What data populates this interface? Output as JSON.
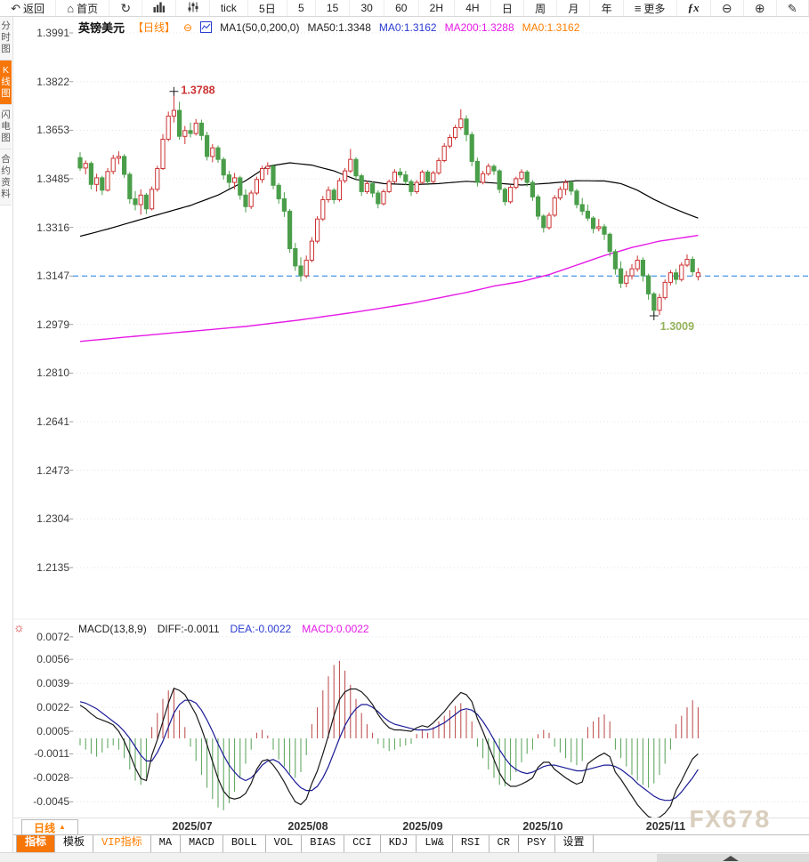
{
  "toolbar": {
    "items": [
      {
        "id": "back",
        "glyph": "↶",
        "label": "返回"
      },
      {
        "id": "home",
        "glyph": "⌂",
        "label": "首页"
      },
      {
        "id": "refresh",
        "glyph": "↻",
        "label": ""
      },
      {
        "id": "kline-chart",
        "glyph": "svg:candles",
        "label": ""
      },
      {
        "id": "indicator-settings",
        "glyph": "svg:sliders",
        "label": ""
      },
      {
        "id": "tick",
        "glyph": "",
        "label": "tick"
      },
      {
        "id": "5d",
        "glyph": "",
        "label": "5日"
      },
      {
        "id": "m5",
        "glyph": "",
        "label": "5"
      },
      {
        "id": "m15",
        "glyph": "",
        "label": "15"
      },
      {
        "id": "m30",
        "glyph": "",
        "label": "30"
      },
      {
        "id": "m60",
        "glyph": "",
        "label": "60"
      },
      {
        "id": "h2",
        "glyph": "",
        "label": "2H"
      },
      {
        "id": "h4",
        "glyph": "",
        "label": "4H"
      },
      {
        "id": "day",
        "glyph": "",
        "label": "日"
      },
      {
        "id": "week",
        "glyph": "",
        "label": "周"
      },
      {
        "id": "month",
        "glyph": "",
        "label": "月"
      },
      {
        "id": "year",
        "glyph": "",
        "label": "年"
      },
      {
        "id": "more",
        "glyph": "≡",
        "label": "更多"
      },
      {
        "id": "fx",
        "glyph": "fx",
        "label": ""
      },
      {
        "id": "zoom-out",
        "glyph": "⊖",
        "label": ""
      },
      {
        "id": "zoom-in",
        "glyph": "⊕",
        "label": ""
      },
      {
        "id": "draw",
        "glyph": "✎",
        "label": ""
      }
    ]
  },
  "sidebar": {
    "tabs": [
      {
        "id": "time-share",
        "label": "分时图",
        "active": false
      },
      {
        "id": "kline",
        "label": "K线图",
        "active": true
      },
      {
        "id": "flash",
        "label": "闪电图",
        "active": false
      },
      {
        "id": "contract-info",
        "label": "合约资料",
        "active": false
      }
    ]
  },
  "legend": {
    "symbol": "英镑美元",
    "period": "【日线】",
    "collapse_icon": "⊖",
    "ma_group": "MA1(50,0,200,0)",
    "ma50": "MA50:1.3348",
    "ma0_blue": "MA0:1.3162",
    "ma200": "MA200:1.3288",
    "ma0_orange": "MA0:1.3162"
  },
  "macd_legend": {
    "title": "MACD(13,8,9)",
    "diff": "DIFF:-0.0011",
    "dea": "DEA:-0.0022",
    "macd": "MACD:0.0022",
    "settings_icon": "☼"
  },
  "bottom": {
    "period_label": "日线",
    "caret": "▲",
    "tabs": [
      {
        "id": "indicators",
        "label": "指标",
        "active": true,
        "vip": false
      },
      {
        "id": "templates",
        "label": "模板",
        "active": false,
        "vip": false
      },
      {
        "id": "vip-indicators",
        "label": "VIP指标",
        "active": false,
        "vip": true
      },
      {
        "id": "ma",
        "label": "MA",
        "active": false,
        "vip": false
      },
      {
        "id": "macd",
        "label": "MACD",
        "active": false,
        "vip": false
      },
      {
        "id": "boll",
        "label": "BOLL",
        "active": false,
        "vip": false
      },
      {
        "id": "vol",
        "label": "VOL",
        "active": false,
        "vip": false
      },
      {
        "id": "bias",
        "label": "BIAS",
        "active": false,
        "vip": false
      },
      {
        "id": "cci",
        "label": "CCI",
        "active": false,
        "vip": false
      },
      {
        "id": "kdj",
        "label": "KDJ",
        "active": false,
        "vip": false
      },
      {
        "id": "lwr",
        "label": "LW&",
        "active": false,
        "vip": false
      },
      {
        "id": "rsi",
        "label": "RSI",
        "active": false,
        "vip": false
      },
      {
        "id": "cr",
        "label": "CR",
        "active": false,
        "vip": false
      },
      {
        "id": "psy",
        "label": "PSY",
        "active": false,
        "vip": false
      },
      {
        "id": "settings",
        "label": "设置",
        "active": false,
        "vip": false
      }
    ]
  },
  "watermark": "FX678",
  "colors": {
    "up": "#cc3333",
    "down": "#4a9e4a",
    "ma50": "#000000",
    "ma200": "#e619e6",
    "price_line": "#1b7fe0",
    "dea_line": "#1a1a96",
    "diff_line": "#1a1a1a",
    "hist_up": "#bb4444",
    "hist_down": "#55a055",
    "accent": "#f7760a",
    "annotation_high": "#cc3333",
    "annotation_low": "#94b25a",
    "cross": "#222222"
  },
  "chart_data": {
    "type": "candlestick",
    "title": "英镑美元 日线",
    "x_labels": [
      "2025/07",
      "2025/08",
      "2025/09",
      "2025/10",
      "2025/11"
    ],
    "price_ticks": [
      1.3991,
      1.3822,
      1.3653,
      1.3485,
      1.3316,
      1.3147,
      1.2979,
      1.281,
      1.2641,
      1.2473,
      1.2304,
      1.2135
    ],
    "current_price": 1.3147,
    "high_annotation": {
      "label": "1.3788",
      "index": 17,
      "price": 1.3788
    },
    "low_annotation": {
      "label": "1.3009",
      "index": 104,
      "price": 1.3009
    },
    "candles": [
      [
        1.3558,
        1.3577,
        1.3512,
        1.3522
      ],
      [
        1.3522,
        1.3548,
        1.35,
        1.3538
      ],
      [
        1.3538,
        1.3545,
        1.3448,
        1.3465
      ],
      [
        1.3465,
        1.3502,
        1.344,
        1.3488
      ],
      [
        1.3488,
        1.3495,
        1.3428,
        1.3445
      ],
      [
        1.3445,
        1.3522,
        1.344,
        1.351
      ],
      [
        1.351,
        1.3568,
        1.35,
        1.3556
      ],
      [
        1.3556,
        1.358,
        1.3535,
        1.3562
      ],
      [
        1.3562,
        1.357,
        1.3488,
        1.35
      ],
      [
        1.35,
        1.3508,
        1.3398,
        1.3415
      ],
      [
        1.3415,
        1.3442,
        1.3375,
        1.3395
      ],
      [
        1.3395,
        1.3448,
        1.336,
        1.3428
      ],
      [
        1.3428,
        1.3435,
        1.3362,
        1.338
      ],
      [
        1.338,
        1.3458,
        1.3375,
        1.3448
      ],
      [
        1.3448,
        1.353,
        1.344,
        1.352
      ],
      [
        1.352,
        1.364,
        1.3515,
        1.3622
      ],
      [
        1.3622,
        1.3718,
        1.3615,
        1.3702
      ],
      [
        1.3702,
        1.3788,
        1.368,
        1.3722
      ],
      [
        1.3722,
        1.3752,
        1.362,
        1.3632
      ],
      [
        1.3632,
        1.3668,
        1.3605,
        1.3652
      ],
      [
        1.3652,
        1.368,
        1.3628,
        1.3642
      ],
      [
        1.3642,
        1.3692,
        1.3635,
        1.3678
      ],
      [
        1.3678,
        1.369,
        1.3618,
        1.3635
      ],
      [
        1.3635,
        1.3648,
        1.3548,
        1.3562
      ],
      [
        1.3562,
        1.3605,
        1.3542,
        1.3592
      ],
      [
        1.3592,
        1.36,
        1.354,
        1.3552
      ],
      [
        1.3552,
        1.356,
        1.3482,
        1.3498
      ],
      [
        1.3498,
        1.3512,
        1.3452,
        1.3472
      ],
      [
        1.3472,
        1.3505,
        1.3448,
        1.3488
      ],
      [
        1.3488,
        1.3495,
        1.3412,
        1.3428
      ],
      [
        1.3428,
        1.3448,
        1.3368,
        1.3388
      ],
      [
        1.3388,
        1.3445,
        1.338,
        1.3435
      ],
      [
        1.3435,
        1.3492,
        1.3428,
        1.3482
      ],
      [
        1.3482,
        1.353,
        1.347,
        1.352
      ],
      [
        1.352,
        1.3542,
        1.3498,
        1.3528
      ],
      [
        1.3528,
        1.3535,
        1.3448,
        1.3462
      ],
      [
        1.3462,
        1.347,
        1.3398,
        1.3415
      ],
      [
        1.3415,
        1.3438,
        1.3352,
        1.3372
      ],
      [
        1.3372,
        1.338,
        1.3228,
        1.3242
      ],
      [
        1.3242,
        1.3262,
        1.3165,
        1.3182
      ],
      [
        1.3182,
        1.3212,
        1.3128,
        1.3148
      ],
      [
        1.3148,
        1.3218,
        1.314,
        1.3202
      ],
      [
        1.3202,
        1.3282,
        1.3195,
        1.3268
      ],
      [
        1.3268,
        1.3355,
        1.326,
        1.3345
      ],
      [
        1.3345,
        1.3425,
        1.3338,
        1.3412
      ],
      [
        1.3412,
        1.3458,
        1.3402,
        1.3445
      ],
      [
        1.3445,
        1.3452,
        1.3398,
        1.3412
      ],
      [
        1.3412,
        1.3488,
        1.3405,
        1.3478
      ],
      [
        1.3478,
        1.3522,
        1.347,
        1.3512
      ],
      [
        1.3512,
        1.3588,
        1.3505,
        1.3552
      ],
      [
        1.3552,
        1.356,
        1.3482,
        1.3495
      ],
      [
        1.3495,
        1.3502,
        1.3425,
        1.344
      ],
      [
        1.344,
        1.3478,
        1.3432,
        1.3468
      ],
      [
        1.3468,
        1.3475,
        1.342,
        1.3435
      ],
      [
        1.3435,
        1.3445,
        1.3382,
        1.3398
      ],
      [
        1.3398,
        1.3448,
        1.3392,
        1.344
      ],
      [
        1.344,
        1.3482,
        1.3435,
        1.3475
      ],
      [
        1.3475,
        1.3518,
        1.3468,
        1.3508
      ],
      [
        1.3508,
        1.3522,
        1.3488,
        1.3498
      ],
      [
        1.3498,
        1.3512,
        1.3462,
        1.3475
      ],
      [
        1.3475,
        1.3482,
        1.3425,
        1.344
      ],
      [
        1.344,
        1.348,
        1.3432,
        1.3472
      ],
      [
        1.3472,
        1.3515,
        1.3465,
        1.3508
      ],
      [
        1.3508,
        1.3515,
        1.3462,
        1.3475
      ],
      [
        1.3475,
        1.3512,
        1.3468,
        1.3505
      ],
      [
        1.3505,
        1.3558,
        1.3498,
        1.3548
      ],
      [
        1.3548,
        1.3608,
        1.3542,
        1.3598
      ],
      [
        1.3598,
        1.3638,
        1.359,
        1.3628
      ],
      [
        1.3628,
        1.3672,
        1.362,
        1.3662
      ],
      [
        1.3662,
        1.3726,
        1.3655,
        1.3692
      ],
      [
        1.3692,
        1.3705,
        1.3615,
        1.3638
      ],
      [
        1.3638,
        1.3648,
        1.3528,
        1.3545
      ],
      [
        1.3545,
        1.3558,
        1.3458,
        1.3472
      ],
      [
        1.3472,
        1.3512,
        1.3465,
        1.3502
      ],
      [
        1.3502,
        1.3538,
        1.3495,
        1.3528
      ],
      [
        1.3528,
        1.3535,
        1.3498,
        1.3512
      ],
      [
        1.3512,
        1.3518,
        1.3435,
        1.3448
      ],
      [
        1.3448,
        1.3455,
        1.3392,
        1.3405
      ],
      [
        1.3405,
        1.3462,
        1.3398,
        1.3455
      ],
      [
        1.3455,
        1.3492,
        1.3448,
        1.3485
      ],
      [
        1.3485,
        1.3518,
        1.3478,
        1.3508
      ],
      [
        1.3508,
        1.3515,
        1.3458,
        1.3472
      ],
      [
        1.3472,
        1.348,
        1.3408,
        1.3422
      ],
      [
        1.3422,
        1.343,
        1.3342,
        1.3355
      ],
      [
        1.3355,
        1.3362,
        1.3298,
        1.3315
      ],
      [
        1.3315,
        1.3368,
        1.3308,
        1.3358
      ],
      [
        1.3358,
        1.3428,
        1.3352,
        1.3418
      ],
      [
        1.3418,
        1.3458,
        1.341,
        1.3448
      ],
      [
        1.3448,
        1.3482,
        1.3428,
        1.3472
      ],
      [
        1.3472,
        1.348,
        1.3428,
        1.3442
      ],
      [
        1.3442,
        1.345,
        1.3382,
        1.3395
      ],
      [
        1.3395,
        1.3418,
        1.3358,
        1.3372
      ],
      [
        1.3372,
        1.3395,
        1.3338,
        1.3348
      ],
      [
        1.3348,
        1.3355,
        1.3295,
        1.3312
      ],
      [
        1.3312,
        1.3345,
        1.3302,
        1.3318
      ],
      [
        1.3318,
        1.3328,
        1.3272,
        1.3292
      ],
      [
        1.3292,
        1.3298,
        1.3215,
        1.3232
      ],
      [
        1.3232,
        1.324,
        1.3152,
        1.3172
      ],
      [
        1.3172,
        1.3198,
        1.3105,
        1.3122
      ],
      [
        1.3122,
        1.3165,
        1.3108,
        1.3148
      ],
      [
        1.3148,
        1.3188,
        1.3135,
        1.3172
      ],
      [
        1.3172,
        1.3218,
        1.3162,
        1.3202
      ],
      [
        1.3202,
        1.3212,
        1.3128,
        1.3148
      ],
      [
        1.3148,
        1.3155,
        1.3065,
        1.3085
      ],
      [
        1.3085,
        1.3092,
        1.3009,
        1.3028
      ],
      [
        1.3028,
        1.3085,
        1.3012,
        1.3072
      ],
      [
        1.3072,
        1.3135,
        1.3065,
        1.3125
      ],
      [
        1.3125,
        1.3168,
        1.3115,
        1.3158
      ],
      [
        1.3158,
        1.3172,
        1.3118,
        1.3135
      ],
      [
        1.3135,
        1.3195,
        1.3128,
        1.3185
      ],
      [
        1.3185,
        1.3222,
        1.3178,
        1.3205
      ],
      [
        1.3205,
        1.3215,
        1.3148,
        1.3162
      ],
      [
        1.3145,
        1.3175,
        1.3132,
        1.3158
      ]
    ],
    "ma50_keypoints": [
      [
        0,
        1.3285
      ],
      [
        5,
        1.331
      ],
      [
        10,
        1.3338
      ],
      [
        15,
        1.3365
      ],
      [
        20,
        1.3392
      ],
      [
        25,
        1.3428
      ],
      [
        30,
        1.3478
      ],
      [
        34,
        1.3528
      ],
      [
        38,
        1.354
      ],
      [
        42,
        1.3532
      ],
      [
        46,
        1.3512
      ],
      [
        50,
        1.3482
      ],
      [
        55,
        1.3468
      ],
      [
        60,
        1.3464
      ],
      [
        65,
        1.3468
      ],
      [
        70,
        1.3476
      ],
      [
        75,
        1.347
      ],
      [
        80,
        1.3463
      ],
      [
        85,
        1.3469
      ],
      [
        90,
        1.3478
      ],
      [
        95,
        1.3477
      ],
      [
        98,
        1.3468
      ],
      [
        101,
        1.3445
      ],
      [
        104,
        1.3413
      ],
      [
        107,
        1.3386
      ],
      [
        110,
        1.3363
      ],
      [
        112,
        1.3348
      ]
    ],
    "ma200_keypoints": [
      [
        0,
        1.292
      ],
      [
        10,
        1.2938
      ],
      [
        20,
        1.2955
      ],
      [
        30,
        1.2972
      ],
      [
        40,
        1.2995
      ],
      [
        50,
        1.3022
      ],
      [
        60,
        1.3052
      ],
      [
        70,
        1.309
      ],
      [
        75,
        1.3112
      ],
      [
        80,
        1.3128
      ],
      [
        85,
        1.3152
      ],
      [
        90,
        1.3185
      ],
      [
        95,
        1.3218
      ],
      [
        100,
        1.3246
      ],
      [
        105,
        1.3268
      ],
      [
        112,
        1.3288
      ]
    ],
    "macd": {
      "params": "(13,8,9)",
      "diff_last": -0.0011,
      "dea_last": -0.0022,
      "macd_last": 0.0022,
      "ticks": [
        0.0072,
        0.0056,
        0.0039,
        0.0022,
        0.0005,
        -0.0011,
        -0.0028,
        -0.0045
      ],
      "unit": 0.0001,
      "histogram": [
        -5,
        -8,
        -11,
        -13,
        -10,
        -7,
        -5,
        -8,
        -14,
        -22,
        -30,
        -33,
        -28,
        8,
        18,
        28,
        34,
        35,
        20,
        8,
        -6,
        -16,
        -26,
        -35,
        -43,
        -49,
        -51,
        -46,
        -38,
        -28,
        -18,
        -8,
        4,
        6,
        2,
        -8,
        -15,
        -20,
        -25,
        -28,
        -24,
        -12,
        10,
        22,
        34,
        44,
        52,
        55,
        48,
        38,
        28,
        18,
        10,
        4,
        -4,
        -7,
        -9,
        -8,
        -6,
        -5,
        -4,
        3,
        6,
        4,
        8,
        12,
        16,
        20,
        23,
        25,
        20,
        12,
        -6,
        -14,
        -22,
        -28,
        -33,
        -34,
        -30,
        -24,
        -17,
        -11,
        -8,
        3,
        6,
        4,
        -6,
        -10,
        -14,
        -17,
        -19,
        -16,
        8,
        12,
        15,
        17,
        12,
        -8,
        -14,
        -20,
        -26,
        -30,
        -33,
        -35,
        -32,
        -26,
        -18,
        -8,
        10,
        16,
        22,
        27,
        22
      ],
      "dea": [
        26,
        25,
        23,
        21,
        18,
        15,
        12,
        9,
        5,
        0,
        -6,
        -12,
        -16,
        -16,
        -10,
        -2,
        8,
        18,
        24,
        27,
        27,
        25,
        20,
        13,
        5,
        -4,
        -12,
        -19,
        -24,
        -28,
        -30,
        -28,
        -24,
        -19,
        -16,
        -15,
        -17,
        -21,
        -26,
        -31,
        -35,
        -37,
        -37,
        -34,
        -28,
        -20,
        -10,
        0,
        9,
        16,
        21,
        24,
        24,
        22,
        19,
        15,
        12,
        10,
        9,
        8,
        7,
        6,
        6,
        6,
        7,
        9,
        11,
        14,
        17,
        20,
        21,
        20,
        17,
        12,
        6,
        -1,
        -8,
        -14,
        -19,
        -22,
        -24,
        -25,
        -24,
        -22,
        -20,
        -19,
        -19,
        -20,
        -21,
        -22,
        -23,
        -23,
        -22,
        -21,
        -20,
        -19,
        -19,
        -20,
        -22,
        -25,
        -28,
        -32,
        -35,
        -38,
        -41,
        -43,
        -44,
        -44,
        -42,
        -38,
        -33,
        -28,
        -22
      ]
    }
  }
}
